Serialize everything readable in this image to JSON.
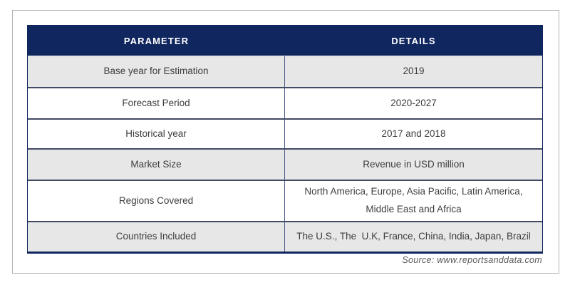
{
  "colors": {
    "header_bg": "#10265e",
    "header_text": "#ffffff",
    "row_alt_bg": "#e7e7e7",
    "row_bg": "#ffffff",
    "body_text": "#3d3d3d",
    "table_border": "#10265e",
    "card_border": "#b3b3b3",
    "source_text": "#595959"
  },
  "table": {
    "headers": {
      "parameter": "PARAMETER",
      "details": "DETAILS"
    },
    "rows": [
      {
        "parameter": "Base year for Estimation",
        "detail": "2019"
      },
      {
        "parameter": "Forecast Period",
        "detail": "2020-2027"
      },
      {
        "parameter": "Historical year",
        "detail": "2017 and 2018"
      },
      {
        "parameter": "Market Size",
        "detail": "Revenue in USD million"
      },
      {
        "parameter": "Regions Covered",
        "detail": "North America, Europe, Asia Pacific, Latin America,\nMiddle East and Africa"
      },
      {
        "parameter": "Countries Included",
        "detail": "The U.S., The  U.K, France, China, India, Japan, Brazil"
      }
    ]
  },
  "source": "Source: www.reportsanddata.com"
}
